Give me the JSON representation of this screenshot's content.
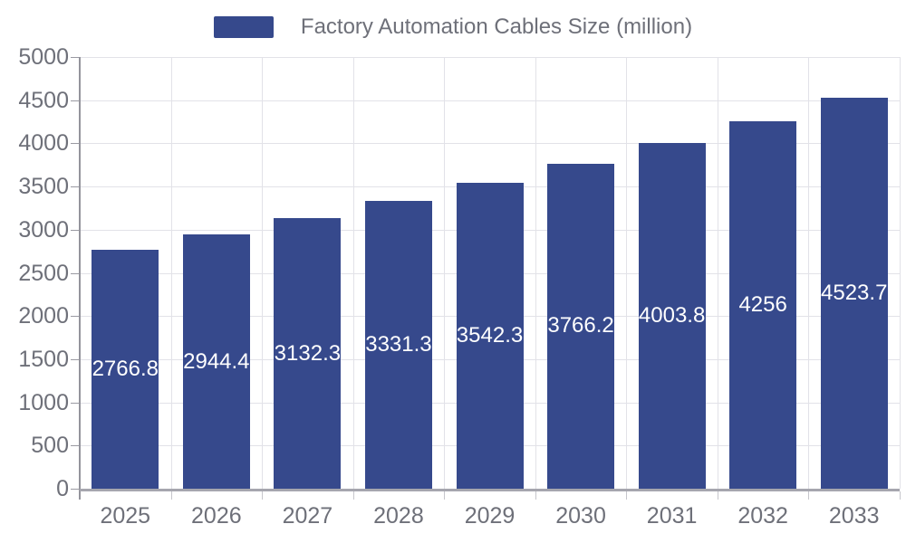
{
  "legend": {
    "label": "Factory Automation Cables Size (million)"
  },
  "chart_data": {
    "type": "bar",
    "title": "Factory Automation Cables Size (million)",
    "categories": [
      "2025",
      "2026",
      "2027",
      "2028",
      "2029",
      "2030",
      "2031",
      "2032",
      "2033"
    ],
    "values": [
      2766.8,
      2944.4,
      3132.3,
      3331.3,
      3542.3,
      3766.2,
      4003.8,
      4256,
      4523.7
    ],
    "value_labels": [
      "2766.8",
      "2944.4",
      "3132.3",
      "3331.3",
      "3542.3",
      "3766.2",
      "4003.8",
      "4256",
      "4523.7"
    ],
    "xlabel": "",
    "ylabel": "",
    "ylim": [
      0,
      5000
    ],
    "yticks": [
      0,
      500,
      1000,
      1500,
      2000,
      2500,
      3000,
      3500,
      4000,
      4500,
      5000
    ],
    "grid": true,
    "legend_position": "top",
    "colors": {
      "bar": "#36498C",
      "value_label": "#FFFFFF",
      "axis_text": "#6E7079",
      "gridline": "#E2E2E8",
      "axis_line": "#A6A6AE"
    }
  }
}
